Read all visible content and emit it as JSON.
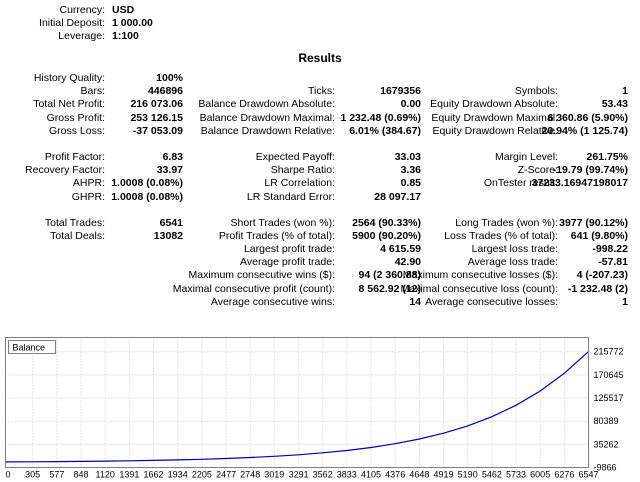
{
  "header": {
    "params": [
      {
        "label": "Currency:",
        "value": "USD"
      },
      {
        "label": "Initial Deposit:",
        "value": "1 000.00"
      },
      {
        "label": "Leverage:",
        "value": "1:100"
      }
    ]
  },
  "results_title": "Results",
  "stats": {
    "groups": [
      [
        [
          "History Quality:",
          "100%",
          "",
          "",
          "",
          ""
        ],
        [
          "Bars:",
          "446896",
          "Ticks:",
          "1679356",
          "Symbols:",
          "1"
        ],
        [
          "Total Net Profit:",
          "216 073.06",
          "Balance Drawdown Absolute:",
          "0.00",
          "Equity Drawdown Absolute:",
          "53.43"
        ],
        [
          "Gross Profit:",
          "253 126.15",
          "Balance Drawdown Maximal:",
          "1 232.48 (0.69%)",
          "Equity Drawdown Maximal:",
          "6 360.86 (5.90%)"
        ],
        [
          "Gross Loss:",
          "-37 053.09",
          "Balance Drawdown Relative:",
          "6.01% (384.67)",
          "Equity Drawdown Relative:",
          "20.94% (1 125.74)"
        ]
      ],
      [
        [
          "Profit Factor:",
          "6.83",
          "Expected Payoff:",
          "33.03",
          "Margin Level:",
          "261.75%"
        ],
        [
          "Recovery Factor:",
          "33.97",
          "Sharpe Ratio:",
          "3.36",
          "Z-Score:",
          "-19.79 (99.74%)"
        ],
        [
          "AHPR:",
          "1.0008 (0.08%)",
          "LR Correlation:",
          "0.85",
          "OnTester result:",
          "37233.16947198017"
        ],
        [
          "GHPR:",
          "1.0008 (0.08%)",
          "LR Standard Error:",
          "28 097.17",
          "",
          ""
        ]
      ],
      [
        [
          "Total Trades:",
          "6541",
          "Short Trades (won %):",
          "2564 (90.33%)",
          "Long Trades (won %):",
          "3977 (90.12%)"
        ],
        [
          "Total Deals:",
          "13082",
          "Profit Trades (% of total):",
          "5900 (90.20%)",
          "Loss Trades (% of total):",
          "641 (9.80%)"
        ],
        [
          "",
          "",
          "Largest profit trade:",
          "4 615.59",
          "Largest loss trade:",
          "-998.22"
        ],
        [
          "",
          "",
          "Average profit trade:",
          "42.90",
          "Average loss trade:",
          "-57.81"
        ],
        [
          "",
          "",
          "Maximum consecutive wins ($):",
          "94 (2 360.88)",
          "Maximum consecutive losses ($):",
          "4 (-207.23)"
        ],
        [
          "",
          "",
          "Maximal consecutive profit (count):",
          "8 562.92 (12)",
          "Maximal consecutive loss (count):",
          "-1 232.48 (2)"
        ],
        [
          "",
          "",
          "Average consecutive wins:",
          "14",
          "Average consecutive losses:",
          "1"
        ]
      ]
    ]
  },
  "chart_data": {
    "type": "line",
    "title": "Balance",
    "xlabel": "",
    "ylabel": "",
    "xmax": 6547,
    "ymin": -9866,
    "ymax": 243500,
    "grid": true,
    "grid_color": "#c8c8c8",
    "border_color": "#808080",
    "background": "#ffffff",
    "x_ticks": [
      0,
      305,
      577,
      848,
      1120,
      1391,
      1662,
      1934,
      2205,
      2477,
      2748,
      3019,
      3291,
      3562,
      3833,
      4105,
      4376,
      4648,
      4919,
      5190,
      5462,
      5733,
      6005,
      6276,
      6547
    ],
    "y_ticks": [
      215772,
      170645,
      125517,
      80389,
      35262,
      -9866
    ],
    "series": [
      {
        "name": "Balance",
        "color": "#0000b4",
        "points": [
          [
            0,
            1000
          ],
          [
            305,
            1285
          ],
          [
            577,
            1607
          ],
          [
            848,
            2008
          ],
          [
            1120,
            2511
          ],
          [
            1391,
            3137
          ],
          [
            1662,
            3920
          ],
          [
            1934,
            4903
          ],
          [
            2205,
            6126
          ],
          [
            2477,
            7660
          ],
          [
            2748,
            9573
          ],
          [
            3019,
            11964
          ],
          [
            3291,
            14957
          ],
          [
            3562,
            18690
          ],
          [
            3833,
            23353
          ],
          [
            4105,
            29206
          ],
          [
            4376,
            36494
          ],
          [
            4648,
            45638
          ],
          [
            4919,
            57031
          ],
          [
            5190,
            71263
          ],
          [
            5462,
            89115
          ],
          [
            5733,
            111351
          ],
          [
            6005,
            139249
          ],
          [
            6276,
            173989
          ],
          [
            6547,
            216073
          ]
        ]
      }
    ]
  }
}
